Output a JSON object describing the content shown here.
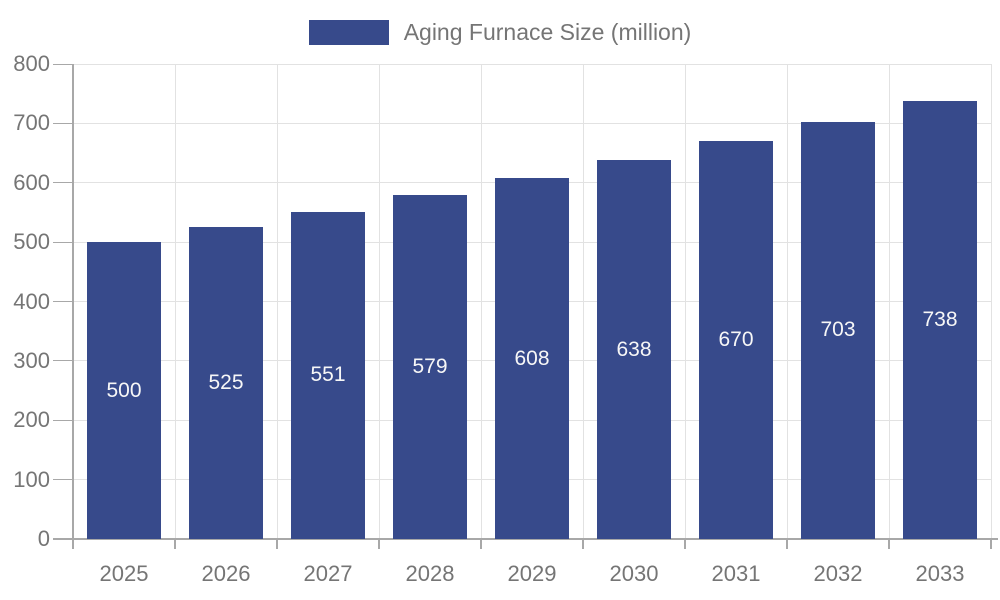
{
  "chart_data": {
    "type": "bar",
    "title": "Aging Furnace Size (million)",
    "series_name": "Aging Furnace Size (million)",
    "categories": [
      "2025",
      "2026",
      "2027",
      "2028",
      "2029",
      "2030",
      "2031",
      "2032",
      "2033"
    ],
    "values": [
      500,
      525,
      551,
      579,
      608,
      638,
      670,
      703,
      738
    ],
    "xlabel": "",
    "ylabel": "",
    "ylim": [
      0,
      800
    ],
    "ytick_step": 100,
    "grid": true,
    "legend_position": "top-center",
    "value_label_position": "inside-center",
    "colors": {
      "bar": "#374a8b",
      "value_label": "#f7f7f7",
      "axis_text": "#757575",
      "legend_text": "#757575",
      "gridline": "#e2e2e2",
      "axis_line": "#a8a8a8",
      "background": "#ffffff"
    }
  }
}
